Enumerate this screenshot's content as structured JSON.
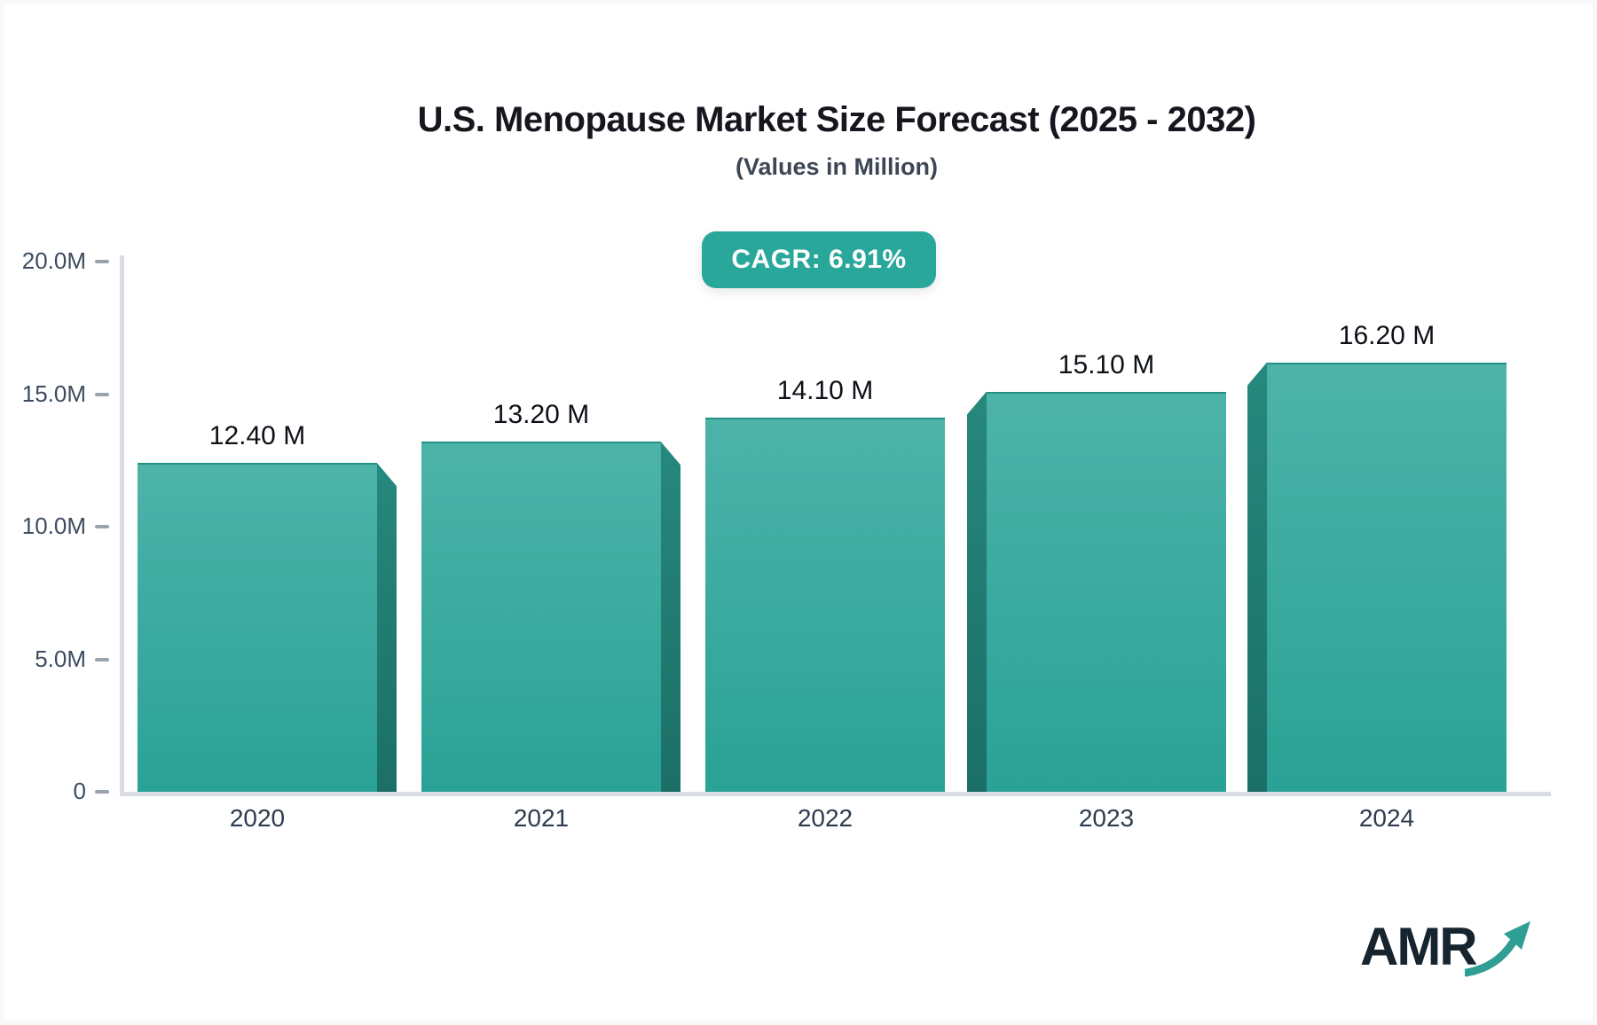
{
  "page": {
    "title": "U.S. Menopause Market Size Forecast (2025 - 2032)",
    "subtitle": "(Values in Million)",
    "cagr_label": "CAGR: 6.91%"
  },
  "logo": {
    "text": "AMR",
    "icon": "trend-arrow-icon"
  },
  "colors": {
    "accent": "#2aa79b",
    "bar_gradient_top": "#4db3a9",
    "bar_gradient_bottom": "#2aa295",
    "bar_side_dark": "#26887d",
    "axis_line": "#d9dce2",
    "tick_text": "#3e4c5e",
    "value_text": "#0d1117",
    "category_text": "#2e3b4d",
    "title_text": "#16161e"
  },
  "chart_data": {
    "type": "bar",
    "title": "U.S. Menopause Market Size Forecast (2025 - 2032)",
    "subtitle": "(Values in Million)",
    "cagr_label": "CAGR: 6.91%",
    "cagr_percent": 6.91,
    "categories": [
      "2020",
      "2021",
      "2022",
      "2023",
      "2024"
    ],
    "values": [
      12.4,
      13.2,
      14.1,
      15.1,
      16.2
    ],
    "value_labels": [
      "12.40 M",
      "13.20 M",
      "14.10 M",
      "15.10 M",
      "16.20 M"
    ],
    "xlabel": "",
    "ylabel": "",
    "ylim": [
      0,
      20
    ],
    "y_ticks": [
      {
        "label": "20.0M",
        "value": 20
      },
      {
        "label": "15.0M",
        "value": 15
      },
      {
        "label": "10.0M",
        "value": 10
      },
      {
        "label": "5.0M",
        "value": 5
      },
      {
        "label": "0",
        "value": 0
      }
    ],
    "grid": false,
    "legend": "none",
    "style": "3d-bars, side shadow faces away from center"
  }
}
